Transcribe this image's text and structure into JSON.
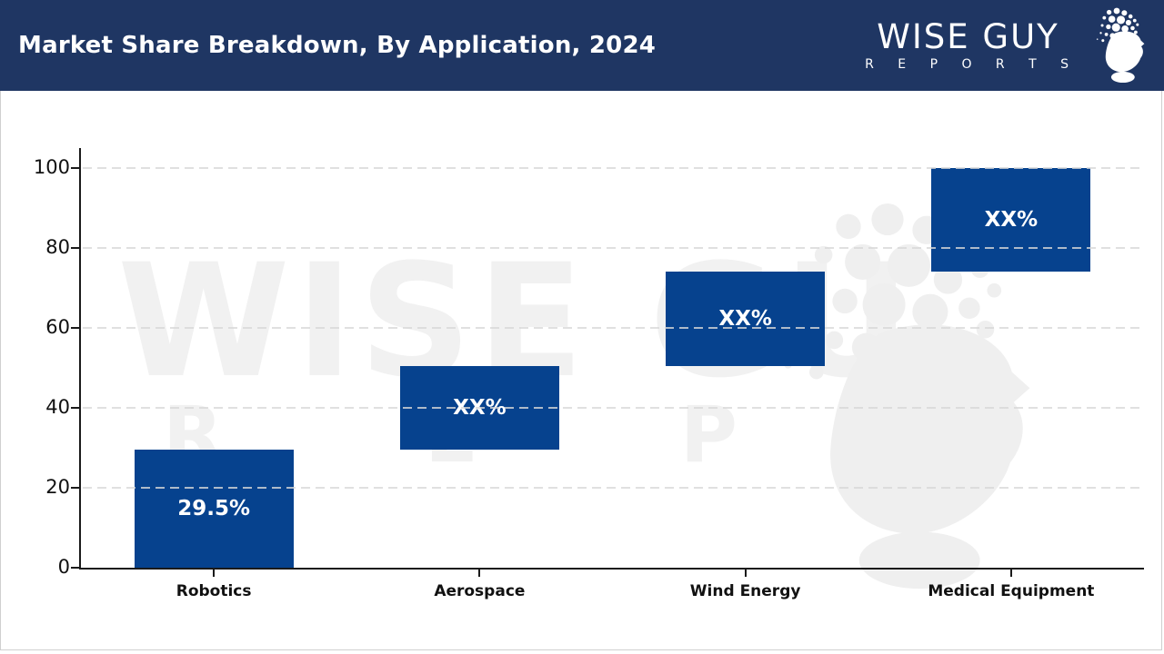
{
  "header": {
    "title": "Market Share Breakdown, By Application, 2024",
    "logo": {
      "line1": "WISE GUY",
      "line2": "REPORTS"
    }
  },
  "watermark": {
    "line1": "WISE GU",
    "line2": "REPORTS"
  },
  "chart_data": {
    "type": "bar",
    "variant": "floating-waterfall",
    "title": "Market Share Breakdown, By Application, 2024",
    "categories": [
      "Robotics",
      "Aerospace",
      "Wind Energy",
      "Medical Equipment"
    ],
    "bars": [
      {
        "category": "Robotics",
        "start": 0,
        "end": 29.5,
        "label": "29.5%"
      },
      {
        "category": "Aerospace",
        "start": 29.5,
        "end": 50.5,
        "label": "XX%"
      },
      {
        "category": "Wind Energy",
        "start": 50.5,
        "end": 74,
        "label": "XX%"
      },
      {
        "category": "Medical Equipment",
        "start": 74,
        "end": 100,
        "label": "XX%"
      }
    ],
    "y_ticks": [
      0,
      20,
      40,
      60,
      80,
      100
    ],
    "ylim": [
      0,
      105
    ],
    "xlabel": "",
    "ylabel": "",
    "legend": "none",
    "grid": "horizontal-dashed-over-bars",
    "colors": {
      "bar": "#06428e",
      "bar_label": "#ffffff",
      "grid": "#d8d8d8",
      "axis": "#1a1a1a",
      "header_bg": "#1f3663",
      "header_text": "#ffffff",
      "watermark": "#f1f1f1"
    }
  }
}
